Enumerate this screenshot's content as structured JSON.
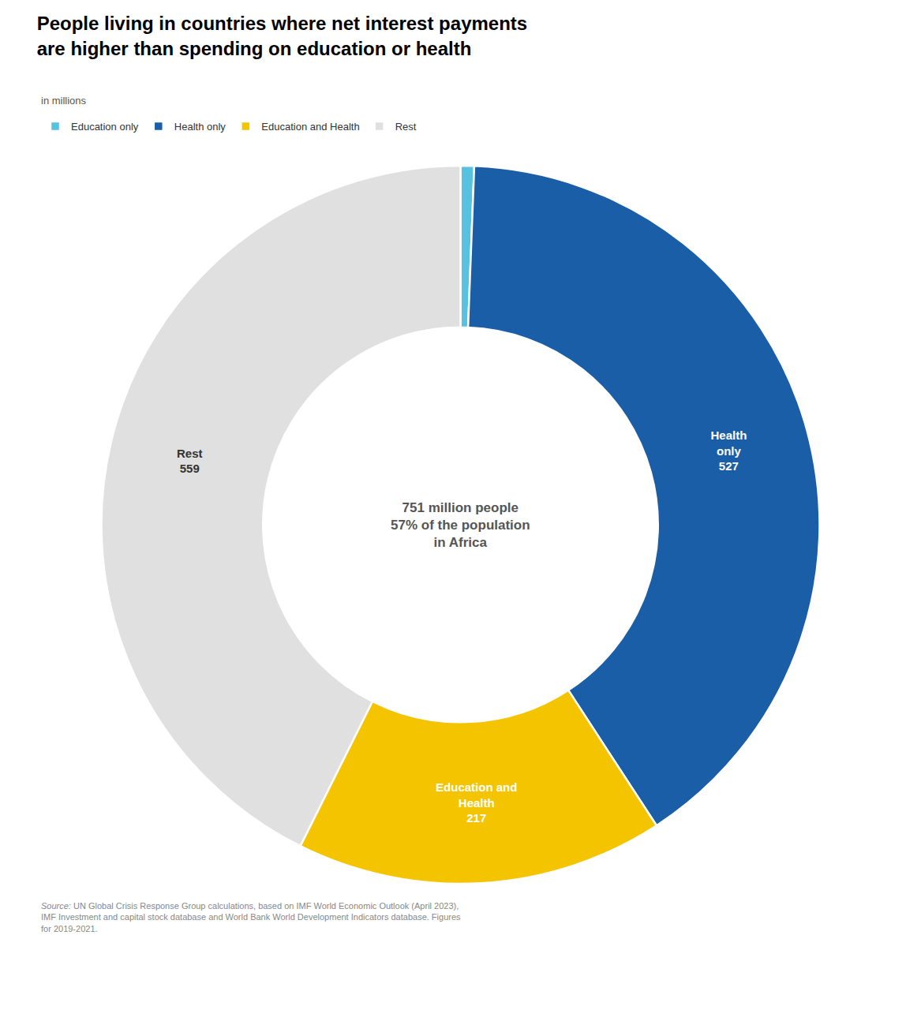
{
  "chart_data": {
    "type": "pie",
    "title": "People living in countries where net interest payments\nare higher than spending on education or health",
    "subtitle": "in millions",
    "categories": [
      "Education only",
      "Health only",
      "Education and Health",
      "Rest"
    ],
    "values": [
      8,
      527,
      217,
      559
    ],
    "colors": [
      "#56C2E0",
      "#1A5EA8",
      "#F5C400",
      "#E0E0E0"
    ],
    "data_labels": true,
    "value_labels": [
      null,
      "Health\nonly\n527",
      "Education and\nHealth\n217",
      "Rest\n559"
    ],
    "legend": "top",
    "annotations": [
      "751 million people",
      "57% of the population",
      "in Africa"
    ],
    "source": "Source: UN Global Crisis Response Group calculations, based on IMF World Economic Outlook (April 2023),\nIMF Investment and capital stock database and World Bank World Development Indicators database. Figures\nfor 2019-2021."
  }
}
